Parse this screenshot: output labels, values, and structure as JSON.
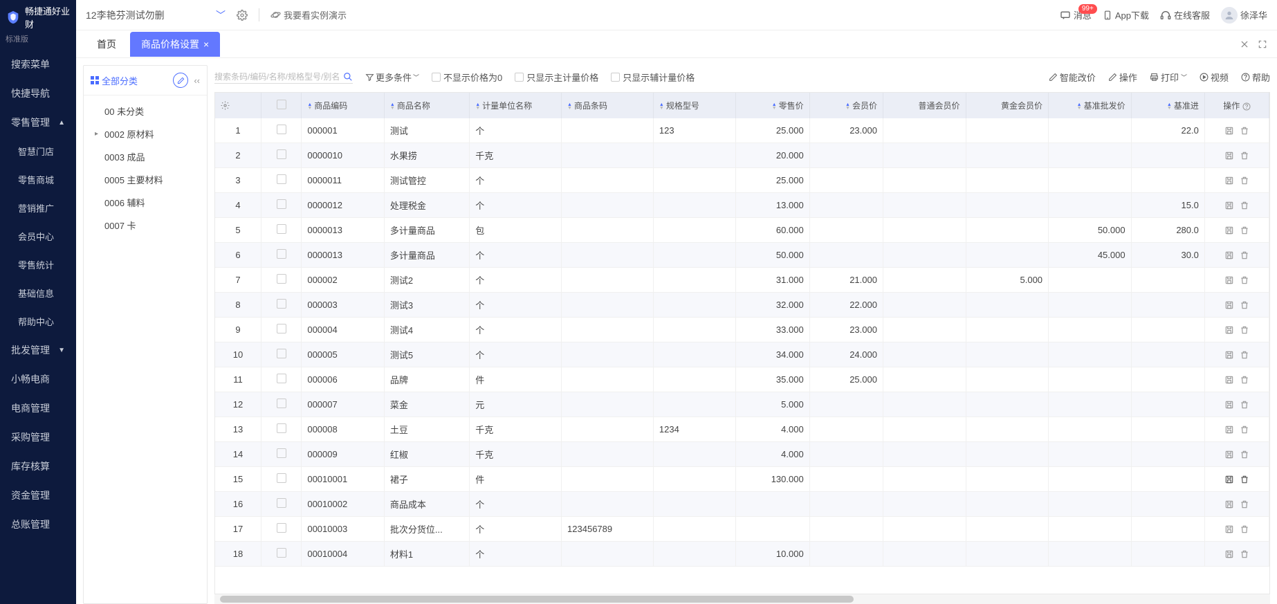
{
  "brand": {
    "name": "畅捷通好业财",
    "edition": "标准版"
  },
  "topbar": {
    "project": "12李艳芬测试勿删",
    "demo": "我要看实例演示",
    "msg_label": "消息",
    "msg_badge": "99+",
    "app_label": "App下载",
    "service_label": "在线客服",
    "user": "徐泽华"
  },
  "sidebar": {
    "items": [
      {
        "label": "搜索菜单"
      },
      {
        "label": "快捷导航"
      },
      {
        "label": "零售管理",
        "arrow": "▲",
        "subs": [
          "智慧门店",
          "零售商城",
          "营销推广",
          "会员中心",
          "零售统计",
          "基础信息",
          "帮助中心"
        ]
      },
      {
        "label": "批发管理",
        "arrow": "▼"
      },
      {
        "label": "小畅电商"
      },
      {
        "label": "电商管理"
      },
      {
        "label": "采购管理"
      },
      {
        "label": "库存核算"
      },
      {
        "label": "资金管理"
      },
      {
        "label": "总账管理"
      }
    ]
  },
  "tabs": {
    "home": "首页",
    "active": "商品价格设置"
  },
  "categories": {
    "title": "全部分类",
    "items": [
      {
        "label": "00 未分类"
      },
      {
        "label": "0002 原材料",
        "expandable": true
      },
      {
        "label": "0003 成品"
      },
      {
        "label": "0005 主要材料"
      },
      {
        "label": "0006 辅料"
      },
      {
        "label": "0007 卡"
      }
    ]
  },
  "toolbar": {
    "search_placeholder": "搜索条码/编码/名称/规格型号/别名",
    "more": "更多条件",
    "chk1": "不显示价格为0",
    "chk2": "只显示主计量价格",
    "chk3": "只显示辅计量价格",
    "smart": "智能改价",
    "operate": "操作",
    "print": "打印",
    "video": "视频",
    "help": "帮助"
  },
  "table": {
    "columns": [
      "",
      "",
      "商品编码",
      "商品名称",
      "计量单位名称",
      "商品条码",
      "规格型号",
      "零售价",
      "会员价",
      "普通会员价",
      "黄金会员价",
      "基准批发价",
      "基准进",
      "操作"
    ],
    "rows": [
      {
        "n": 1,
        "code": "000001",
        "name": "测试",
        "unit": "个",
        "barcode": "",
        "spec": "123",
        "retail": "25.000",
        "member": "23.000",
        "normal": "",
        "gold": "",
        "wholesale": "",
        "base": "22.0"
      },
      {
        "n": 2,
        "code": "0000010",
        "name": "水果捞",
        "unit": "千克",
        "barcode": "",
        "spec": "",
        "retail": "20.000",
        "member": "",
        "normal": "",
        "gold": "",
        "wholesale": "",
        "base": ""
      },
      {
        "n": 3,
        "code": "0000011",
        "name": "测试管控",
        "unit": "个",
        "barcode": "",
        "spec": "",
        "retail": "25.000",
        "member": "",
        "normal": "",
        "gold": "",
        "wholesale": "",
        "base": ""
      },
      {
        "n": 4,
        "code": "0000012",
        "name": "处理税金",
        "unit": "个",
        "barcode": "",
        "spec": "",
        "retail": "13.000",
        "member": "",
        "normal": "",
        "gold": "",
        "wholesale": "",
        "base": "15.0"
      },
      {
        "n": 5,
        "code": "0000013",
        "name": "多计量商品",
        "unit": "包",
        "barcode": "",
        "spec": "",
        "retail": "60.000",
        "member": "",
        "normal": "",
        "gold": "",
        "wholesale": "50.000",
        "base": "280.0"
      },
      {
        "n": 6,
        "code": "0000013",
        "name": "多计量商品",
        "unit": "个",
        "barcode": "",
        "spec": "",
        "retail": "50.000",
        "member": "",
        "normal": "",
        "gold": "",
        "wholesale": "45.000",
        "base": "30.0"
      },
      {
        "n": 7,
        "code": "000002",
        "name": "测试2",
        "unit": "个",
        "barcode": "",
        "spec": "",
        "retail": "31.000",
        "member": "21.000",
        "normal": "",
        "gold": "5.000",
        "wholesale": "",
        "base": ""
      },
      {
        "n": 8,
        "code": "000003",
        "name": "测试3",
        "unit": "个",
        "barcode": "",
        "spec": "",
        "retail": "32.000",
        "member": "22.000",
        "normal": "",
        "gold": "",
        "wholesale": "",
        "base": ""
      },
      {
        "n": 9,
        "code": "000004",
        "name": "测试4",
        "unit": "个",
        "barcode": "",
        "spec": "",
        "retail": "33.000",
        "member": "23.000",
        "normal": "",
        "gold": "",
        "wholesale": "",
        "base": ""
      },
      {
        "n": 10,
        "code": "000005",
        "name": "测试5",
        "unit": "个",
        "barcode": "",
        "spec": "",
        "retail": "34.000",
        "member": "24.000",
        "normal": "",
        "gold": "",
        "wholesale": "",
        "base": ""
      },
      {
        "n": 11,
        "code": "000006",
        "name": "品牌",
        "unit": "件",
        "barcode": "",
        "spec": "",
        "retail": "35.000",
        "member": "25.000",
        "normal": "",
        "gold": "",
        "wholesale": "",
        "base": ""
      },
      {
        "n": 12,
        "code": "000007",
        "name": "菜金",
        "unit": "元",
        "barcode": "",
        "spec": "",
        "retail": "5.000",
        "member": "",
        "normal": "",
        "gold": "",
        "wholesale": "",
        "base": ""
      },
      {
        "n": 13,
        "code": "000008",
        "name": "土豆",
        "unit": "千克",
        "barcode": "",
        "spec": "1234",
        "retail": "4.000",
        "member": "",
        "normal": "",
        "gold": "",
        "wholesale": "",
        "base": ""
      },
      {
        "n": 14,
        "code": "000009",
        "name": "红椒",
        "unit": "千克",
        "barcode": "",
        "spec": "",
        "retail": "4.000",
        "member": "",
        "normal": "",
        "gold": "",
        "wholesale": "",
        "base": ""
      },
      {
        "n": 15,
        "code": "00010001",
        "name": "裙子",
        "unit": "件",
        "barcode": "",
        "spec": "",
        "retail": "130.000",
        "member": "",
        "normal": "",
        "gold": "",
        "wholesale": "",
        "base": "",
        "active_actions": true
      },
      {
        "n": 16,
        "code": "00010002",
        "name": "商品成本",
        "unit": "个",
        "barcode": "",
        "spec": "",
        "retail": "",
        "member": "",
        "normal": "",
        "gold": "",
        "wholesale": "",
        "base": ""
      },
      {
        "n": 17,
        "code": "00010003",
        "name": "批次分货位...",
        "unit": "个",
        "barcode": "123456789",
        "spec": "",
        "retail": "",
        "member": "",
        "normal": "",
        "gold": "",
        "wholesale": "",
        "base": ""
      },
      {
        "n": 18,
        "code": "00010004",
        "name": "材料1",
        "unit": "个",
        "barcode": "",
        "spec": "",
        "retail": "10.000",
        "member": "",
        "normal": "",
        "gold": "",
        "wholesale": "",
        "base": ""
      }
    ]
  }
}
